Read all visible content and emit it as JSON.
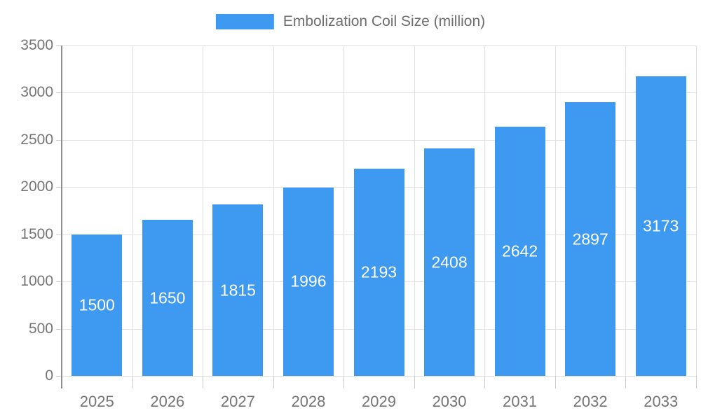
{
  "chart_data": {
    "type": "bar",
    "title": "",
    "legend": "Embolization Coil Size (million)",
    "legend_position": "top-center",
    "categories": [
      "2025",
      "2026",
      "2027",
      "2028",
      "2029",
      "2030",
      "2031",
      "2032",
      "2033"
    ],
    "values": [
      1500,
      1650,
      1815,
      1996,
      2193,
      2408,
      2642,
      2897,
      3173
    ],
    "xlabel": "",
    "ylabel": "",
    "ylim": [
      0,
      3500
    ],
    "ytick_interval": 500,
    "yticks": [
      0,
      500,
      1000,
      1500,
      2000,
      2500,
      3000,
      3500
    ],
    "grid": true,
    "value_labels_shown": true,
    "colors": {
      "bar": "#3d9af0",
      "value_label": "#ffffff",
      "axis_label": "#757575",
      "legend_text": "#6e6e6e",
      "grid_line": "#e0e0e0",
      "axis_line": "#909090",
      "background": "#ffffff"
    }
  }
}
